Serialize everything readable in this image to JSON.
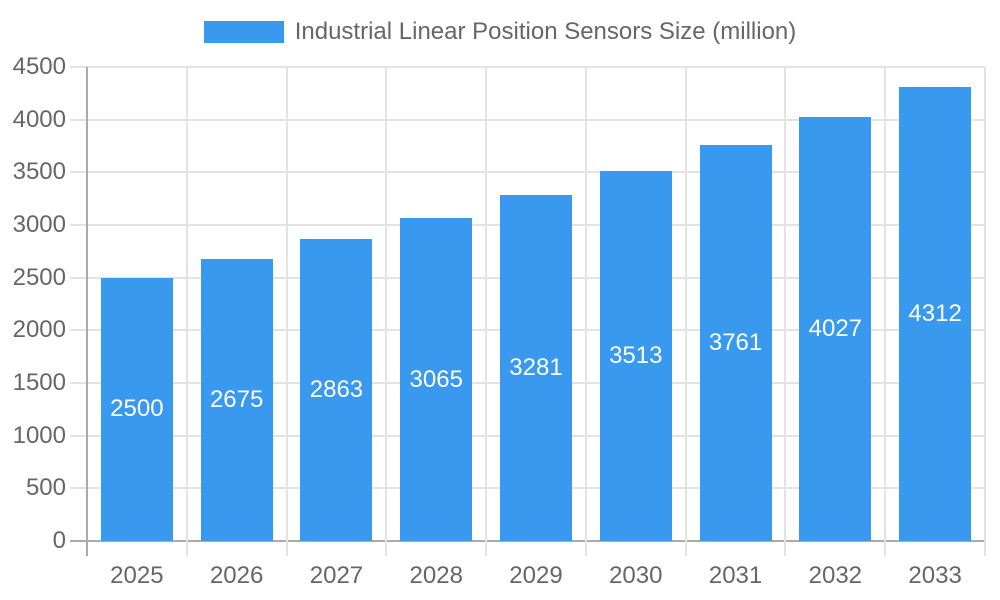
{
  "chart_data": {
    "type": "bar",
    "legend": "Industrial Linear Position Sensors Size (million)",
    "categories": [
      "2025",
      "2026",
      "2027",
      "2028",
      "2029",
      "2030",
      "2031",
      "2032",
      "2033"
    ],
    "values": [
      2500,
      2675,
      2863,
      3065,
      3281,
      3513,
      3761,
      4027,
      4312
    ],
    "yticks": [
      0,
      500,
      1000,
      1500,
      2000,
      2500,
      3000,
      3500,
      4000,
      4500
    ],
    "ylim": [
      0,
      4500
    ],
    "grid": true,
    "legend_position": "top",
    "colors": {
      "bar": "#3899ee",
      "value_label": "#ffffff",
      "axis_text": "#666666",
      "gridline": "#e3e3e3",
      "axis_line": "#ababab"
    }
  }
}
